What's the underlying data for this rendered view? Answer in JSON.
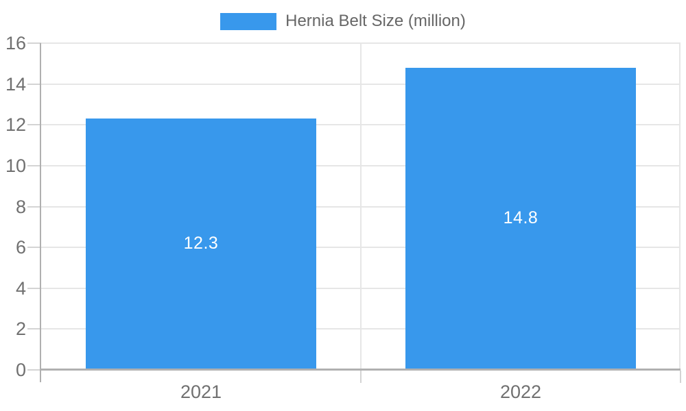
{
  "chart_data": {
    "type": "bar",
    "title": "",
    "legend": {
      "label": "Hernia Belt Size (million)",
      "position": "top-center"
    },
    "categories": [
      "2021",
      "2022"
    ],
    "series": [
      {
        "name": "Hernia Belt Size (million)",
        "values": [
          12.3,
          14.8
        ]
      }
    ],
    "value_labels": [
      "12.3",
      "14.8"
    ],
    "xlabel": "",
    "ylabel": "",
    "ylim": [
      0,
      16
    ],
    "yticks": [
      0,
      2,
      4,
      6,
      8,
      10,
      12,
      14,
      16
    ],
    "grid": true,
    "colors": {
      "bar": "#3898ec",
      "legend_text": "#666666",
      "tick_label": "#707070",
      "gridline": "#e6e6e6",
      "axis_line": "#b0b0b0",
      "tick_mark": "#d4d4d4",
      "value_label_text": "#ffffff",
      "background": "#ffffff"
    }
  }
}
